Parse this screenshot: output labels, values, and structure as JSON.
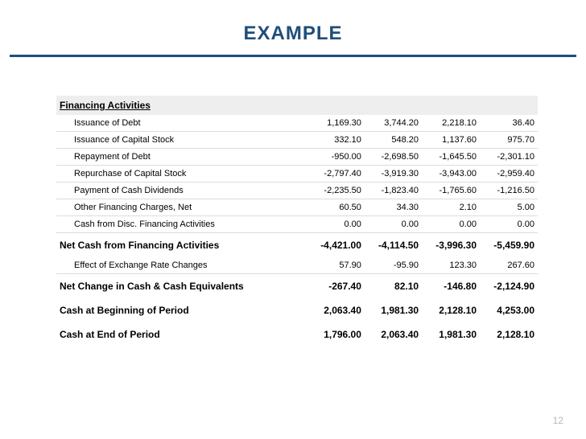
{
  "title": "EXAMPLE",
  "title_color": "#1f4e79",
  "rule_color": "#1f4e79",
  "page_number": "12",
  "table": {
    "section_header": "Financing Activities",
    "lines": [
      {
        "label": "Issuance of Debt",
        "v": [
          "1,169.30",
          "3,744.20",
          "2,218.10",
          "36.40"
        ]
      },
      {
        "label": "Issuance of Capital Stock",
        "v": [
          "332.10",
          "548.20",
          "1,137.60",
          "975.70"
        ]
      },
      {
        "label": "Repayment of Debt",
        "v": [
          "-950.00",
          "-2,698.50",
          "-1,645.50",
          "-2,301.10"
        ]
      },
      {
        "label": "Repurchase of Capital Stock",
        "v": [
          "-2,797.40",
          "-3,919.30",
          "-3,943.00",
          "-2,959.40"
        ]
      },
      {
        "label": "Payment of Cash Dividends",
        "v": [
          "-2,235.50",
          "-1,823.40",
          "-1,765.60",
          "-1,216.50"
        ]
      },
      {
        "label": "Other Financing Charges, Net",
        "v": [
          "60.50",
          "34.30",
          "2.10",
          "5.00"
        ]
      },
      {
        "label": "Cash from Disc. Financing Activities",
        "v": [
          "0.00",
          "0.00",
          "0.00",
          "0.00"
        ]
      }
    ],
    "net_financing": {
      "label": "Net Cash from Financing Activities",
      "v": [
        "-4,421.00",
        "-4,114.50",
        "-3,996.30",
        "-5,459.90"
      ]
    },
    "exchange": {
      "label": "Effect of Exchange Rate Changes",
      "v": [
        "57.90",
        "-95.90",
        "123.30",
        "267.60"
      ]
    },
    "net_change": {
      "label": "Net Change in Cash & Cash Equivalents",
      "v": [
        "-267.40",
        "82.10",
        "-146.80",
        "-2,124.90"
      ]
    },
    "cash_begin": {
      "label": "Cash at Beginning of Period",
      "v": [
        "2,063.40",
        "1,981.30",
        "2,128.10",
        "4,253.00"
      ]
    },
    "cash_end": {
      "label": "Cash at End of Period",
      "v": [
        "1,796.00",
        "2,063.40",
        "1,981.30",
        "2,128.10"
      ]
    }
  }
}
